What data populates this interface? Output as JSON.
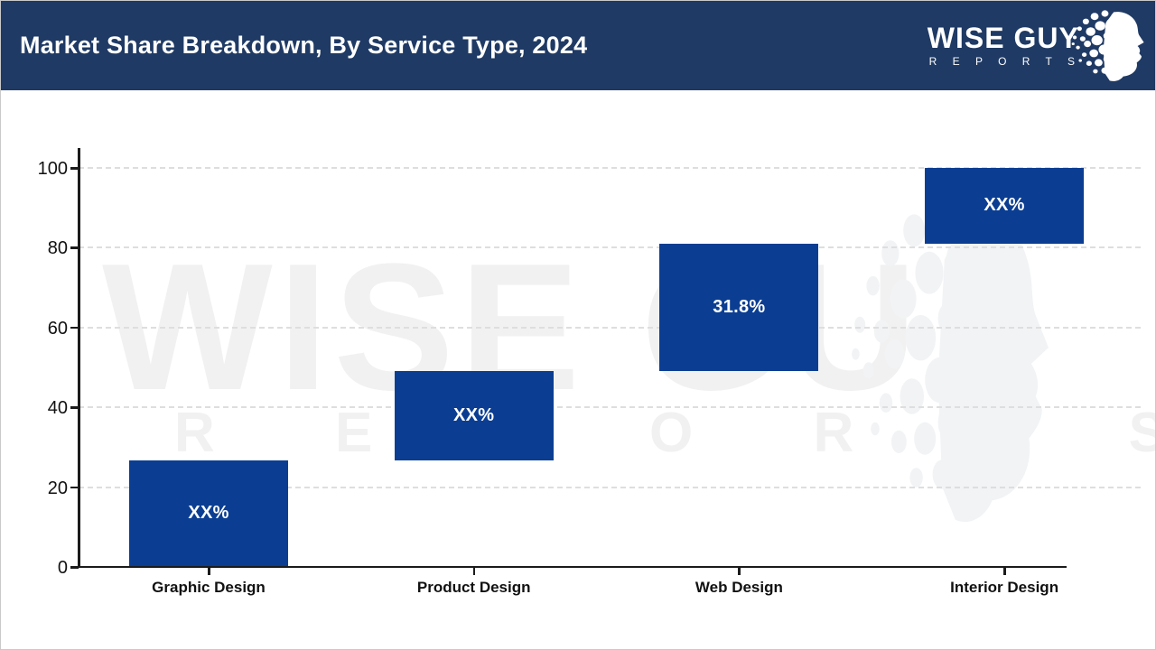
{
  "header": {
    "title": "Market Share Breakdown, By Service Type, 2024",
    "bg_color": "#1f3a64",
    "logo": {
      "line1": "WISE GUY",
      "line2": "R E P O R T S"
    }
  },
  "watermark": {
    "line1": "WISE GU",
    "line2": "R E P O R T S"
  },
  "chart_data": {
    "type": "bar",
    "subtype": "waterfall-floating-segments",
    "title": "Market Share Breakdown, By Service Type, 2024",
    "categories": [
      "Graphic Design",
      "Product Design",
      "Web Design",
      "Interior Design"
    ],
    "segments": [
      {
        "category": "Graphic Design",
        "start": 0,
        "end": 26.8,
        "value": 26.8,
        "label": "XX%"
      },
      {
        "category": "Product Design",
        "start": 26.8,
        "end": 49.2,
        "value": 22.4,
        "label": "XX%"
      },
      {
        "category": "Web Design",
        "start": 49.2,
        "end": 81.0,
        "value": 31.8,
        "label": "31.8%"
      },
      {
        "category": "Interior Design",
        "start": 81.0,
        "end": 100,
        "value": 19.0,
        "label": "XX%"
      }
    ],
    "yticks": [
      0,
      20,
      40,
      60,
      80,
      100
    ],
    "ylim": [
      0,
      105
    ],
    "xlabel": "",
    "ylabel": "",
    "grid": "horizontal-dashed",
    "legend": "none",
    "bar_color": "#0b3e92",
    "bar_label_color": "#ffffff",
    "axis_color": "#1b1b1b",
    "grid_color": "#dedede"
  }
}
